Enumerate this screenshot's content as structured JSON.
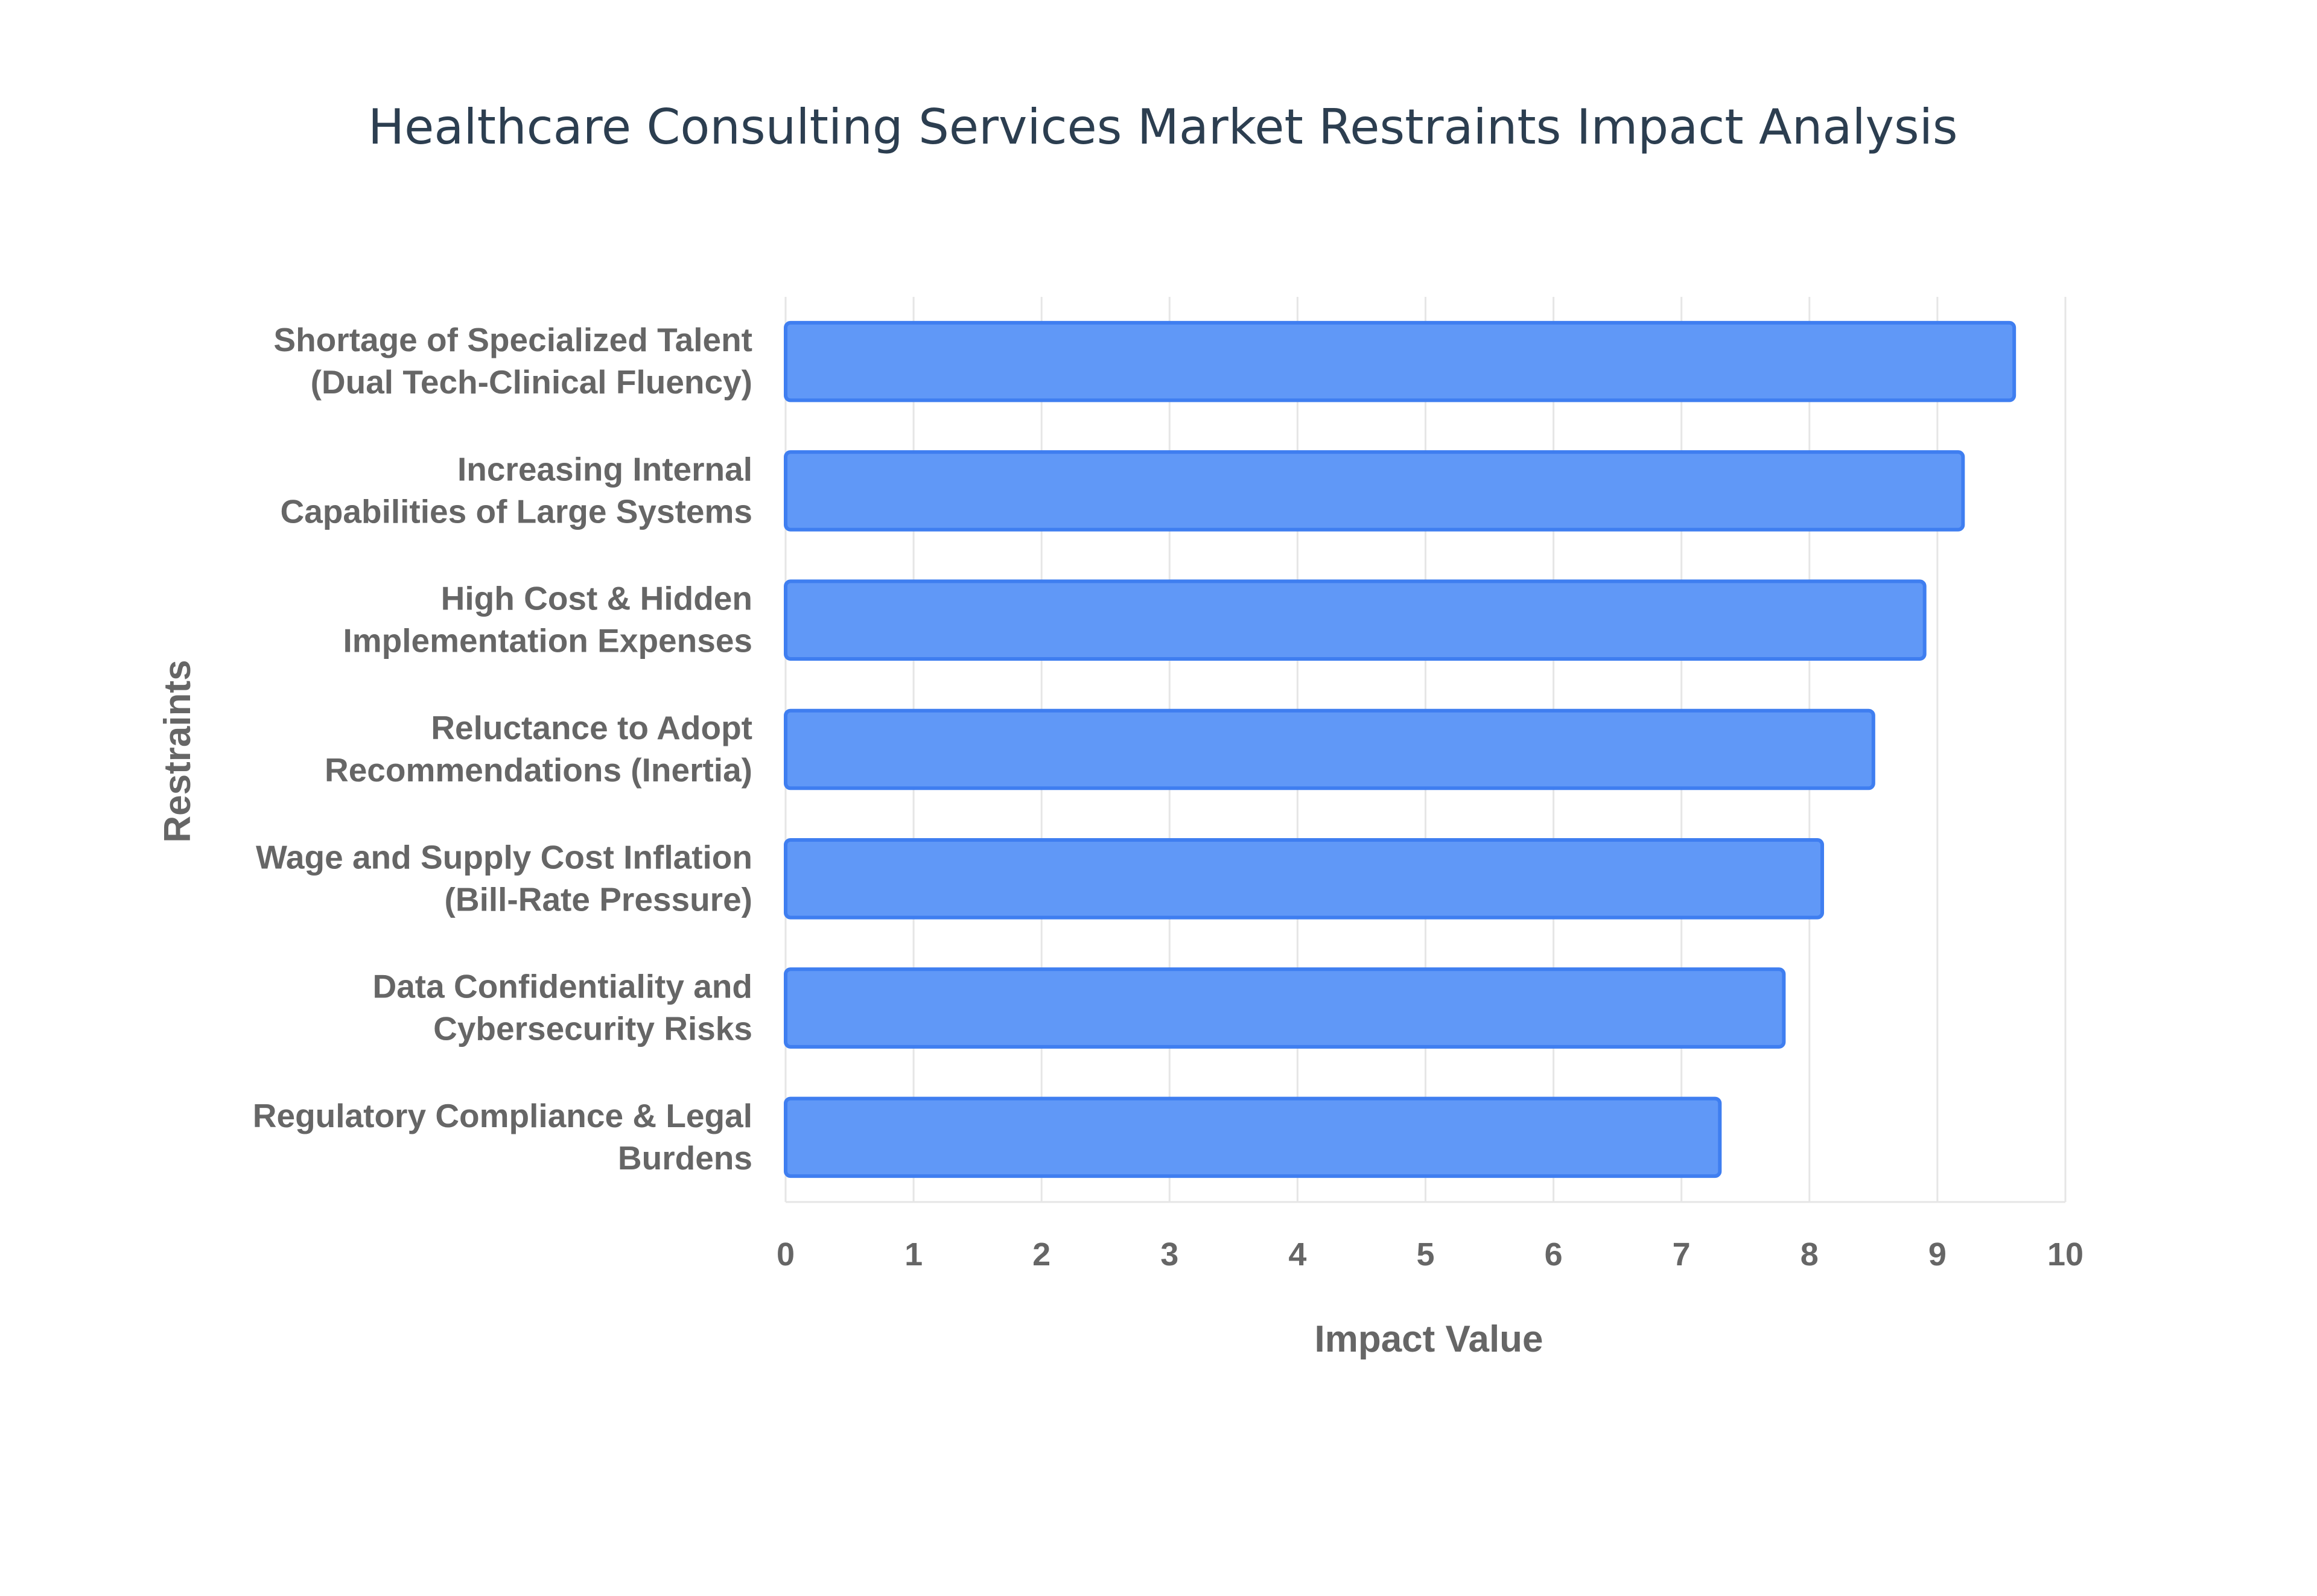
{
  "chart_data": {
    "type": "bar",
    "orientation": "horizontal",
    "title": "Healthcare Consulting Services Market Restraints Impact Analysis",
    "xlabel": "Impact Value",
    "ylabel": "Restraints",
    "xlim": [
      0,
      10
    ],
    "xticks": [
      "0",
      "1",
      "2",
      "3",
      "4",
      "5",
      "6",
      "7",
      "8",
      "9",
      "10"
    ],
    "grid": true,
    "legend": "none",
    "bar_color": "#6098f7",
    "bar_border_color": "#3f7ef0",
    "categories": [
      [
        "Shortage of Specialized Talent",
        "(Dual Tech-Clinical Fluency)"
      ],
      [
        "Increasing Internal",
        "Capabilities of Large Systems"
      ],
      [
        "High Cost & Hidden",
        "Implementation Expenses"
      ],
      [
        "Reluctance to Adopt",
        "Recommendations (Inertia)"
      ],
      [
        "Wage and Supply Cost Inflation",
        "(Bill-Rate Pressure)"
      ],
      [
        "Data Confidentiality and",
        "Cybersecurity Risks"
      ],
      [
        "Regulatory Compliance & Legal",
        "Burdens"
      ]
    ],
    "values": [
      9.6,
      9.2,
      8.9,
      8.5,
      8.1,
      7.8,
      7.3
    ]
  }
}
